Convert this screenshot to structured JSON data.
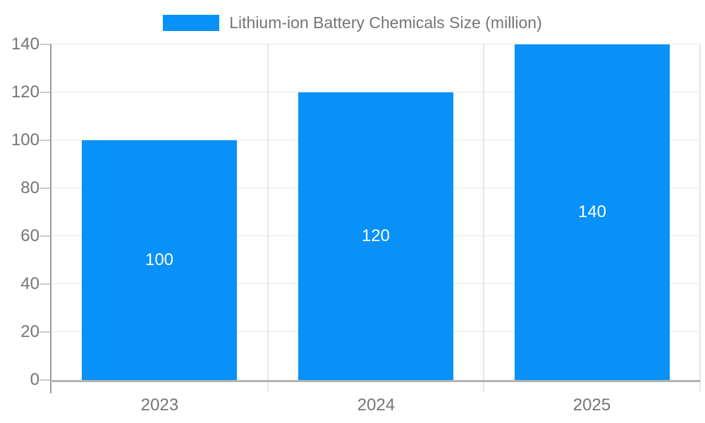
{
  "chart_data": {
    "type": "bar",
    "title": "",
    "series_name": "Lithium-ion Battery Chemicals Size (million)",
    "categories": [
      "2023",
      "2024",
      "2025"
    ],
    "values": [
      100,
      120,
      140
    ],
    "bar_labels": [
      "100",
      "120",
      "140"
    ],
    "xlabel": "",
    "ylabel": "",
    "ylim": [
      0,
      140
    ],
    "yticks": [
      0,
      20,
      40,
      60,
      80,
      100,
      120,
      140
    ],
    "grid": true,
    "legend_position": "top-center",
    "colors": {
      "bar": "#0891f8",
      "axis_label_text": "#757575",
      "bar_value_text": "#ffffff",
      "gridline": "#e6e6e6",
      "tick_mark": "#cccccc",
      "y_axis_line": "#9a9a9a",
      "x_axis_line": "#b2b2b2"
    }
  }
}
